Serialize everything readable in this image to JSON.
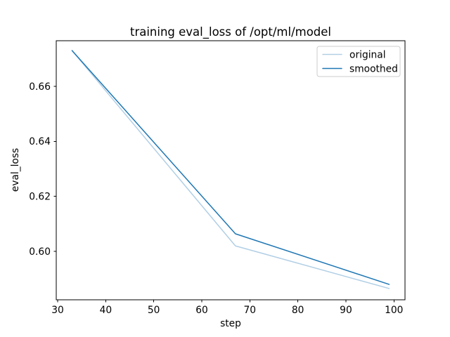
{
  "chart_data": {
    "type": "line",
    "title": "training eval_loss of /opt/ml/model",
    "xlabel": "step",
    "ylabel": "eval_loss",
    "x": [
      33,
      67,
      99
    ],
    "series": [
      {
        "name": "original",
        "values": [
          0.673,
          0.602,
          0.5865
        ],
        "color": "#b1cfe5",
        "line_width": 1.5
      },
      {
        "name": "smoothed",
        "values": [
          0.673,
          0.6064,
          0.588
        ],
        "color": "#1f77b4",
        "line_width": 1.5
      }
    ],
    "xlim": [
      29.7,
      102.3
    ],
    "ylim": [
      0.5824,
      0.6766
    ],
    "xticks": [
      30,
      40,
      50,
      60,
      70,
      80,
      90,
      100
    ],
    "yticks": [
      {
        "v": 0.6,
        "label": "0.60"
      },
      {
        "v": 0.62,
        "label": "0.62"
      },
      {
        "v": 0.64,
        "label": "0.64"
      },
      {
        "v": 0.66,
        "label": "0.66"
      }
    ],
    "legend": {
      "position": "upper right",
      "entries": [
        "original",
        "smoothed"
      ]
    },
    "grid": false,
    "colors": {
      "spine": "#000000",
      "legend_border": "#cccccc",
      "background": "#ffffff"
    }
  }
}
